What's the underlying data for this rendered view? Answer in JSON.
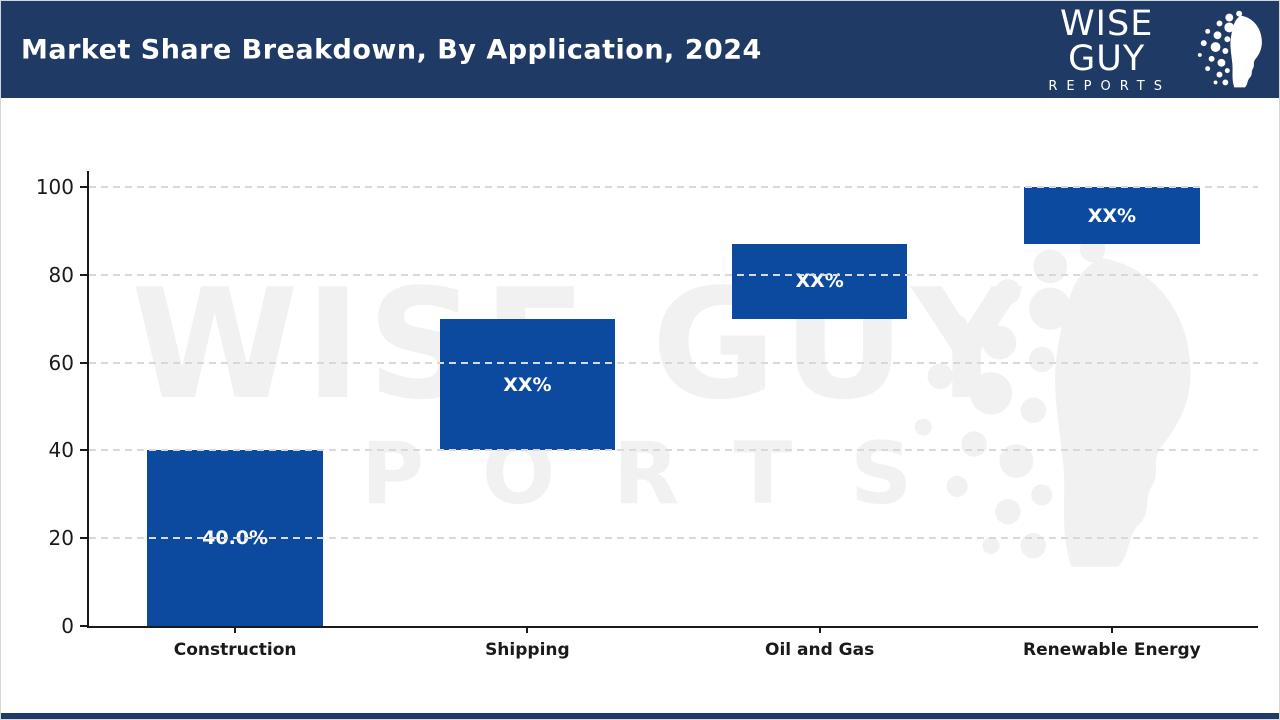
{
  "header": {
    "title": "Market Share Breakdown, By Application, 2024",
    "brand": {
      "line1": "WISE GUY",
      "line2": "REPORTS"
    }
  },
  "watermark": {
    "line1": "WISE GUY",
    "line2": "PORTS"
  },
  "colors": {
    "header_bg": "#203a66",
    "bar": "#0b4a9e",
    "gridline": "#d9d9d9",
    "axis": "#1a1a1a",
    "watermark": "#f1f1f1"
  },
  "chart_data": {
    "type": "bar",
    "subtype": "waterfall",
    "title": "Market Share Breakdown, By Application, 2024",
    "xlabel": "",
    "ylabel": "",
    "categories": [
      "Construction",
      "Shipping",
      "Oil and Gas",
      "Renewable Energy"
    ],
    "segments": [
      {
        "category": "Construction",
        "start": 0,
        "end": 40,
        "label": "40.0%"
      },
      {
        "category": "Shipping",
        "start": 40,
        "end": 70,
        "label": "XX%"
      },
      {
        "category": "Oil and Gas",
        "start": 70,
        "end": 87,
        "label": "XX%"
      },
      {
        "category": "Renewable Energy",
        "start": 87,
        "end": 100,
        "label": "XX%"
      }
    ],
    "yticks": [
      0,
      20,
      40,
      60,
      80,
      100
    ],
    "ylim": [
      0,
      100
    ],
    "grid": "horizontal-dashed",
    "legend": "none"
  }
}
